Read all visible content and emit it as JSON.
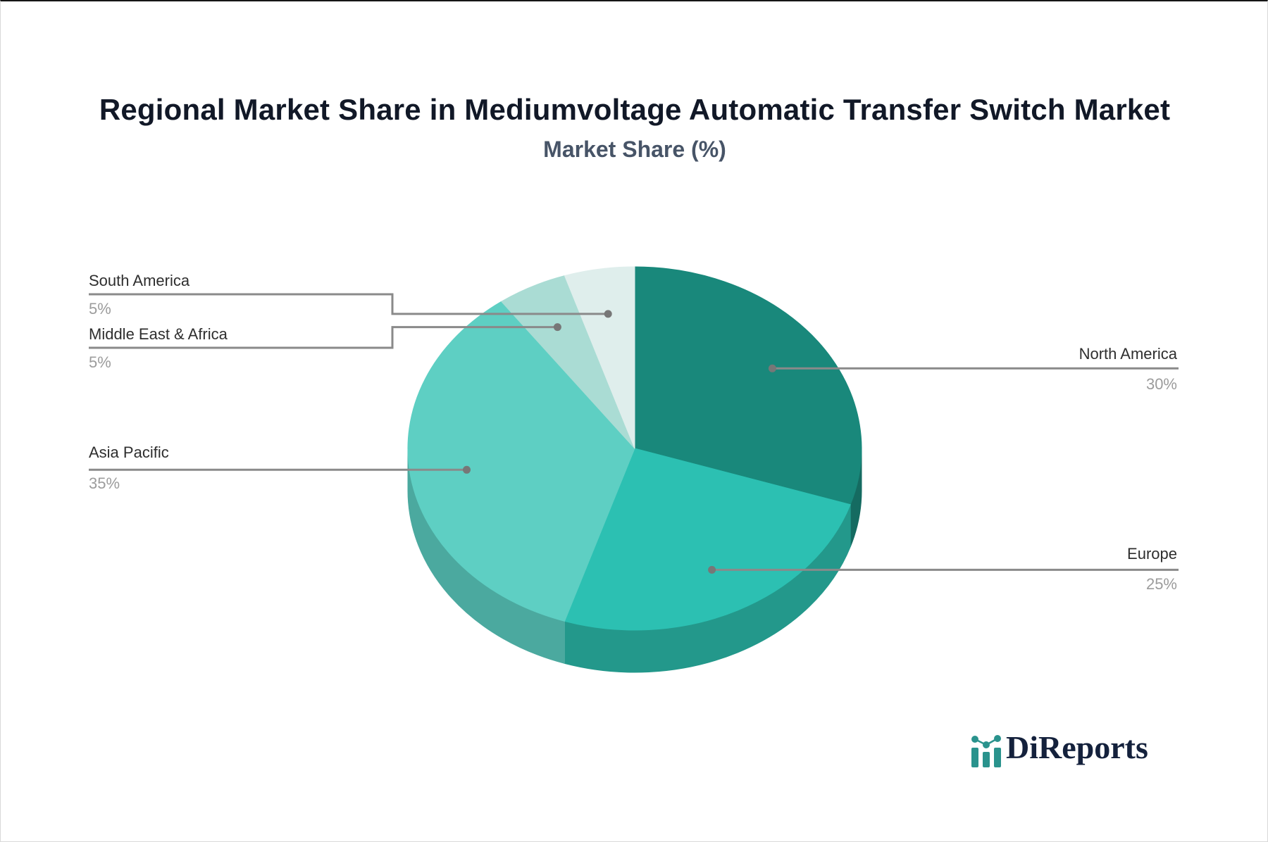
{
  "chart_data": {
    "type": "pie",
    "style": "3d",
    "title": "Regional Market Share in Mediumvoltage Automatic Transfer Switch Market",
    "subtitle": "Market Share (%)",
    "unit": "%",
    "start_angle_deg": 0,
    "direction": "clockwise",
    "slices": [
      {
        "label": "North America",
        "value": 30,
        "pct_label": "30%",
        "color": "#19887b",
        "side_color": "#156b61"
      },
      {
        "label": "Europe",
        "value": 25,
        "pct_label": "25%",
        "color": "#2cc0b2",
        "side_color": "#23988b"
      },
      {
        "label": "Asia Pacific",
        "value": 35,
        "pct_label": "35%",
        "color": "#5ecfc3",
        "side_color": "#4ba99f"
      },
      {
        "label": "Middle East & Africa",
        "value": 5,
        "pct_label": "5%",
        "color": "#aadcd4",
        "side_color": "#8fc9c1"
      },
      {
        "label": "South America",
        "value": 5,
        "pct_label": "5%",
        "color": "#dfeeec",
        "side_color": "#c6ddd9"
      }
    ]
  },
  "colors": {
    "title_text": "#111827",
    "subtitle_text": "#475467",
    "label_text": "#2e2e2e",
    "percent_text": "#9c9c9c",
    "leader_line": "#8a8a8a",
    "leader_dot": "#777777",
    "brand_icon": "#2a938d",
    "brand_text": "#14213c"
  },
  "brand": {
    "name": "DiReports"
  }
}
